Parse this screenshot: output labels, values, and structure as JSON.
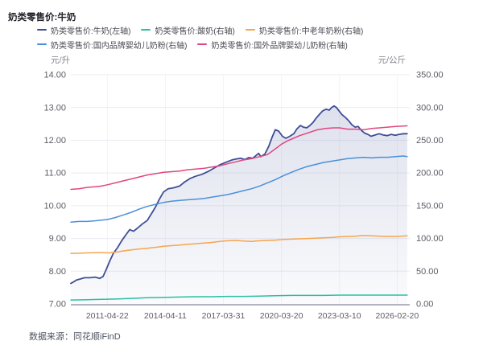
{
  "title": "奶类零售价:牛奶",
  "source": "数据来源：同花顺iFinD",
  "colors": {
    "milk": "#3F4E94",
    "yogurt": "#29BFA4",
    "middle_aged_powder": "#F6A54E",
    "domestic_infant_powder": "#4A90DA",
    "foreign_infant_powder": "#E2467F",
    "grid_line": "#EBECF2",
    "v_grid_line": "#F2F3F8",
    "axis_line": "#B3B6C2",
    "axis_text": "#5C5C66",
    "area_fill_rgb": "104,116,174"
  },
  "chart_data": {
    "type": "line",
    "title": "奶类零售价:牛奶",
    "grid": true,
    "legend_position": "top",
    "left_axis": {
      "unit": "元/升",
      "min": 7,
      "max": 14,
      "tick_labels": [
        "14.00",
        "13.00",
        "12.00",
        "11.00",
        "10.00",
        "9.00",
        "8.00",
        "7.00"
      ]
    },
    "right_axis": {
      "unit": "元/公斤",
      "min": 0,
      "max": 350,
      "tick_labels": [
        "350.00",
        "300.00",
        "250.00",
        "200.00",
        "150.00",
        "100.00",
        "50.00",
        "0.00"
      ]
    },
    "x_axis": {
      "range_years": [
        2009.44,
        2026.78
      ],
      "ticks": [
        {
          "label": "2011-04-22",
          "year": 2011.307
        },
        {
          "label": "2014-04-11",
          "year": 2014.277
        },
        {
          "label": "2017-03-31",
          "year": 2017.246
        },
        {
          "label": "2020-03-20",
          "year": 2020.216
        },
        {
          "label": "2023-03-10",
          "year": 2023.186
        },
        {
          "label": "2026-02-20",
          "year": 2026.137
        }
      ]
    },
    "series": [
      {
        "name": "奶类零售价:牛奶(左轴)",
        "key": "milk",
        "axis": "left",
        "color": "#3F4E94",
        "width": 1.8,
        "area": true,
        "legend_row": 0,
        "points": [
          [
            2009.44,
            7.63
          ],
          [
            2009.6,
            7.68
          ],
          [
            2009.73,
            7.73
          ],
          [
            2009.9,
            7.76
          ],
          [
            2010.14,
            7.8
          ],
          [
            2010.43,
            7.8
          ],
          [
            2010.68,
            7.82
          ],
          [
            2010.92,
            7.78
          ],
          [
            2011.09,
            7.84
          ],
          [
            2011.25,
            8.05
          ],
          [
            2011.42,
            8.3
          ],
          [
            2011.62,
            8.55
          ],
          [
            2011.83,
            8.72
          ],
          [
            2012.03,
            8.92
          ],
          [
            2012.24,
            9.1
          ],
          [
            2012.45,
            9.27
          ],
          [
            2012.65,
            9.22
          ],
          [
            2012.86,
            9.32
          ],
          [
            2013.11,
            9.45
          ],
          [
            2013.35,
            9.55
          ],
          [
            2013.56,
            9.75
          ],
          [
            2013.76,
            9.95
          ],
          [
            2013.97,
            10.2
          ],
          [
            2014.18,
            10.42
          ],
          [
            2014.42,
            10.52
          ],
          [
            2014.71,
            10.55
          ],
          [
            2015.0,
            10.6
          ],
          [
            2015.25,
            10.72
          ],
          [
            2015.53,
            10.83
          ],
          [
            2015.82,
            10.9
          ],
          [
            2016.15,
            10.96
          ],
          [
            2016.48,
            11.05
          ],
          [
            2016.77,
            11.15
          ],
          [
            2017.06,
            11.25
          ],
          [
            2017.39,
            11.33
          ],
          [
            2017.68,
            11.4
          ],
          [
            2017.92,
            11.43
          ],
          [
            2018.13,
            11.45
          ],
          [
            2018.34,
            11.41
          ],
          [
            2018.54,
            11.47
          ],
          [
            2018.75,
            11.45
          ],
          [
            2018.95,
            11.55
          ],
          [
            2019.05,
            11.6
          ],
          [
            2019.16,
            11.5
          ],
          [
            2019.37,
            11.58
          ],
          [
            2019.57,
            11.82
          ],
          [
            2019.74,
            12.1
          ],
          [
            2019.9,
            12.32
          ],
          [
            2020.07,
            12.28
          ],
          [
            2020.27,
            12.12
          ],
          [
            2020.44,
            12.06
          ],
          [
            2020.64,
            12.12
          ],
          [
            2020.85,
            12.2
          ],
          [
            2021.01,
            12.35
          ],
          [
            2021.18,
            12.45
          ],
          [
            2021.34,
            12.4
          ],
          [
            2021.51,
            12.38
          ],
          [
            2021.67,
            12.45
          ],
          [
            2021.84,
            12.55
          ],
          [
            2022.0,
            12.68
          ],
          [
            2022.17,
            12.8
          ],
          [
            2022.33,
            12.9
          ],
          [
            2022.5,
            12.95
          ],
          [
            2022.66,
            12.92
          ],
          [
            2022.78,
            13.0
          ],
          [
            2022.91,
            13.05
          ],
          [
            2023.03,
            13.0
          ],
          [
            2023.16,
            12.9
          ],
          [
            2023.32,
            12.78
          ],
          [
            2023.48,
            12.7
          ],
          [
            2023.65,
            12.6
          ],
          [
            2023.81,
            12.48
          ],
          [
            2023.98,
            12.4
          ],
          [
            2024.14,
            12.42
          ],
          [
            2024.31,
            12.3
          ],
          [
            2024.47,
            12.22
          ],
          [
            2024.64,
            12.18
          ],
          [
            2024.8,
            12.12
          ],
          [
            2025.01,
            12.16
          ],
          [
            2025.21,
            12.2
          ],
          [
            2025.42,
            12.16
          ],
          [
            2025.63,
            12.14
          ],
          [
            2025.83,
            12.18
          ],
          [
            2026.04,
            12.15
          ],
          [
            2026.24,
            12.18
          ],
          [
            2026.45,
            12.2
          ],
          [
            2026.65,
            12.2
          ]
        ]
      },
      {
        "name": "奶类零售价:酸奶(右轴)",
        "key": "yogurt",
        "axis": "right",
        "color": "#29BFA4",
        "width": 1.5,
        "area": false,
        "legend_row": 0,
        "points": [
          [
            2009.44,
            6
          ],
          [
            2010.26,
            6.5
          ],
          [
            2011.0,
            7
          ],
          [
            2011.72,
            7.5
          ],
          [
            2012.54,
            8.5
          ],
          [
            2013.35,
            9.5
          ],
          [
            2014.18,
            10
          ],
          [
            2015.0,
            10.5
          ],
          [
            2015.82,
            11
          ],
          [
            2016.64,
            11
          ],
          [
            2017.46,
            11.5
          ],
          [
            2018.28,
            11.5
          ],
          [
            2019.1,
            12
          ],
          [
            2019.91,
            12.5
          ],
          [
            2020.73,
            13
          ],
          [
            2021.55,
            13
          ],
          [
            2022.36,
            13
          ],
          [
            2023.19,
            13.5
          ],
          [
            2024.01,
            13.5
          ],
          [
            2024.83,
            13.5
          ],
          [
            2025.65,
            13.5
          ],
          [
            2026.65,
            13.5
          ]
        ]
      },
      {
        "name": "奶类零售价:中老年奶粉(右轴)",
        "key": "middle_aged_powder",
        "axis": "right",
        "color": "#F6A54E",
        "width": 1.5,
        "area": false,
        "legend_row": 0,
        "points": [
          [
            2009.44,
            77
          ],
          [
            2010.26,
            78
          ],
          [
            2011.0,
            78.5
          ],
          [
            2011.41,
            78
          ],
          [
            2011.72,
            79
          ],
          [
            2012.13,
            81
          ],
          [
            2012.54,
            82.5
          ],
          [
            2012.95,
            84
          ],
          [
            2013.35,
            85
          ],
          [
            2013.76,
            86.5
          ],
          [
            2014.18,
            88
          ],
          [
            2014.59,
            89
          ],
          [
            2015.0,
            90
          ],
          [
            2015.41,
            91
          ],
          [
            2015.82,
            92
          ],
          [
            2016.23,
            93
          ],
          [
            2016.64,
            94
          ],
          [
            2017.05,
            95.5
          ],
          [
            2017.46,
            96.5
          ],
          [
            2017.87,
            97
          ],
          [
            2018.28,
            96
          ],
          [
            2018.69,
            95.5
          ],
          [
            2019.1,
            96.5
          ],
          [
            2019.5,
            97
          ],
          [
            2019.91,
            97.5
          ],
          [
            2020.32,
            98.5
          ],
          [
            2020.73,
            99
          ],
          [
            2021.14,
            99.5
          ],
          [
            2021.55,
            100
          ],
          [
            2021.95,
            100.5
          ],
          [
            2022.36,
            101
          ],
          [
            2022.77,
            101.5
          ],
          [
            2023.19,
            102.5
          ],
          [
            2023.6,
            103
          ],
          [
            2024.01,
            103.5
          ],
          [
            2024.42,
            104.5
          ],
          [
            2024.83,
            104
          ],
          [
            2025.24,
            103.5
          ],
          [
            2025.65,
            103
          ],
          [
            2026.06,
            103
          ],
          [
            2026.65,
            104
          ]
        ]
      },
      {
        "name": "奶类零售价:国内品牌婴幼儿奶粉(右轴)",
        "key": "domestic_infant_powder",
        "axis": "right",
        "color": "#4A90DA",
        "width": 1.5,
        "area": false,
        "legend_row": 1,
        "points": [
          [
            2009.44,
            125
          ],
          [
            2009.85,
            126
          ],
          [
            2010.26,
            126
          ],
          [
            2010.67,
            127
          ],
          [
            2011.0,
            128
          ],
          [
            2011.31,
            129
          ],
          [
            2011.72,
            132
          ],
          [
            2012.13,
            136
          ],
          [
            2012.54,
            140
          ],
          [
            2012.95,
            145
          ],
          [
            2013.35,
            149
          ],
          [
            2013.76,
            152
          ],
          [
            2014.18,
            155
          ],
          [
            2014.59,
            157
          ],
          [
            2015.0,
            158
          ],
          [
            2015.41,
            159
          ],
          [
            2015.82,
            160
          ],
          [
            2016.23,
            161
          ],
          [
            2016.64,
            163
          ],
          [
            2017.05,
            165
          ],
          [
            2017.46,
            167
          ],
          [
            2017.87,
            170
          ],
          [
            2018.28,
            173
          ],
          [
            2018.69,
            176
          ],
          [
            2019.1,
            180
          ],
          [
            2019.5,
            185
          ],
          [
            2019.91,
            190
          ],
          [
            2020.32,
            196
          ],
          [
            2020.73,
            201
          ],
          [
            2021.14,
            206
          ],
          [
            2021.55,
            210
          ],
          [
            2021.95,
            213
          ],
          [
            2022.36,
            216
          ],
          [
            2022.77,
            218
          ],
          [
            2023.19,
            220
          ],
          [
            2023.6,
            222
          ],
          [
            2024.01,
            223
          ],
          [
            2024.42,
            224
          ],
          [
            2024.83,
            223
          ],
          [
            2025.24,
            224
          ],
          [
            2025.65,
            224
          ],
          [
            2026.06,
            225
          ],
          [
            2026.45,
            226
          ],
          [
            2026.65,
            225
          ]
        ]
      },
      {
        "name": "奶类零售价:国外品牌婴幼儿奶粉(右轴)",
        "key": "foreign_infant_powder",
        "axis": "right",
        "color": "#E2467F",
        "width": 1.5,
        "area": false,
        "legend_row": 1,
        "points": [
          [
            2009.44,
            175
          ],
          [
            2009.85,
            176
          ],
          [
            2010.26,
            178
          ],
          [
            2010.67,
            179
          ],
          [
            2011.0,
            180
          ],
          [
            2011.31,
            182
          ],
          [
            2011.72,
            185
          ],
          [
            2012.13,
            188
          ],
          [
            2012.54,
            191
          ],
          [
            2012.95,
            194
          ],
          [
            2013.35,
            197
          ],
          [
            2013.76,
            199
          ],
          [
            2014.18,
            201
          ],
          [
            2014.59,
            202
          ],
          [
            2015.0,
            203
          ],
          [
            2015.41,
            205
          ],
          [
            2015.82,
            206
          ],
          [
            2016.23,
            207
          ],
          [
            2016.64,
            209
          ],
          [
            2017.05,
            211
          ],
          [
            2017.46,
            214
          ],
          [
            2017.87,
            217
          ],
          [
            2018.28,
            220
          ],
          [
            2018.69,
            222
          ],
          [
            2019.1,
            225
          ],
          [
            2019.5,
            228
          ],
          [
            2019.91,
            237
          ],
          [
            2020.22,
            244
          ],
          [
            2020.52,
            249
          ],
          [
            2020.83,
            253
          ],
          [
            2021.14,
            257
          ],
          [
            2021.45,
            260
          ],
          [
            2021.75,
            263
          ],
          [
            2022.06,
            266
          ],
          [
            2022.47,
            268
          ],
          [
            2022.88,
            269
          ],
          [
            2023.19,
            269
          ],
          [
            2023.6,
            267
          ],
          [
            2024.01,
            267
          ],
          [
            2024.42,
            266
          ],
          [
            2024.83,
            268
          ],
          [
            2025.24,
            269
          ],
          [
            2025.65,
            270
          ],
          [
            2026.06,
            271
          ],
          [
            2026.65,
            272
          ]
        ]
      }
    ]
  }
}
